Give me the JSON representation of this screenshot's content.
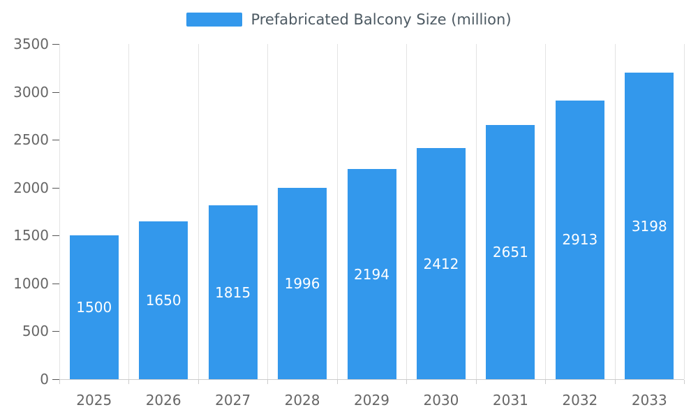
{
  "chart_data": {
    "type": "bar",
    "title": "Prefabricated Balcony Size (million)",
    "categories": [
      "2025",
      "2026",
      "2027",
      "2028",
      "2029",
      "2030",
      "2031",
      "2032",
      "2033"
    ],
    "values": [
      1500,
      1650,
      1815,
      1996,
      2194,
      2412,
      2651,
      2913,
      3198
    ],
    "series": [
      {
        "name": "Prefabricated Balcony Size (million)",
        "values": [
          1500,
          1650,
          1815,
          1996,
          2194,
          2412,
          2651,
          2913,
          3198
        ]
      }
    ],
    "xlabel": "",
    "ylabel": "",
    "ylim": [
      0,
      3500
    ],
    "yticks": [
      0,
      500,
      1000,
      1500,
      2000,
      2500,
      3000,
      3500
    ],
    "bar_color": "#3398EC",
    "bar_label_color": "#ffffff",
    "grid": "vertical-gridlines-on",
    "legend_position": "top-center"
  },
  "legend": {
    "label": "Prefabricated Balcony Size (million)"
  }
}
